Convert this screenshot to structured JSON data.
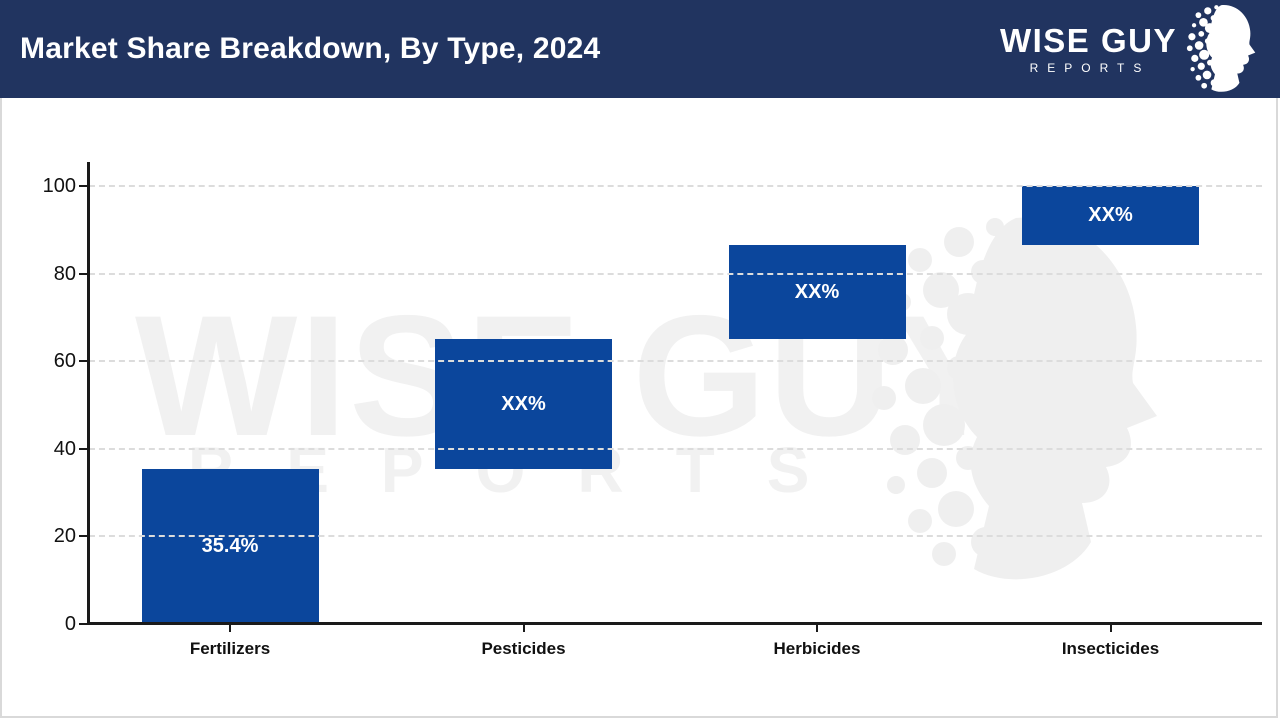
{
  "header": {
    "title": "Market Share Breakdown, By Type, 2024",
    "background": "#213460",
    "logo": {
      "line1": "WISE GUY",
      "line2": "REPORTS"
    }
  },
  "watermark": {
    "line1": "WISE GUY",
    "line2": "REPORTS"
  },
  "chart_data": {
    "type": "bar",
    "subtype": "waterfall",
    "title": "Market Share Breakdown, By Type, 2024",
    "categories": [
      "Fertilizers",
      "Pesticides",
      "Herbicides",
      "Insecticides"
    ],
    "segments": [
      {
        "category": "Fertilizers",
        "start": 0,
        "end": 35.4,
        "label": "35.4%"
      },
      {
        "category": "Pesticides",
        "start": 35.4,
        "end": 65,
        "label": "XX%"
      },
      {
        "category": "Herbicides",
        "start": 65,
        "end": 86.5,
        "label": "XX%"
      },
      {
        "category": "Insecticides",
        "start": 86.5,
        "end": 100,
        "label": "XX%"
      }
    ],
    "xlabel": "",
    "ylabel": "",
    "ylim": [
      0,
      100
    ],
    "yticks": [
      0,
      20,
      40,
      60,
      80,
      100
    ],
    "grid": "horizontal dashed, drawn over bars",
    "legend": "none",
    "bar_color": "#0B469C",
    "label_color": "#ffffff",
    "axis_color": "#1a1a1a",
    "grid_color": "#dcdcdc"
  }
}
